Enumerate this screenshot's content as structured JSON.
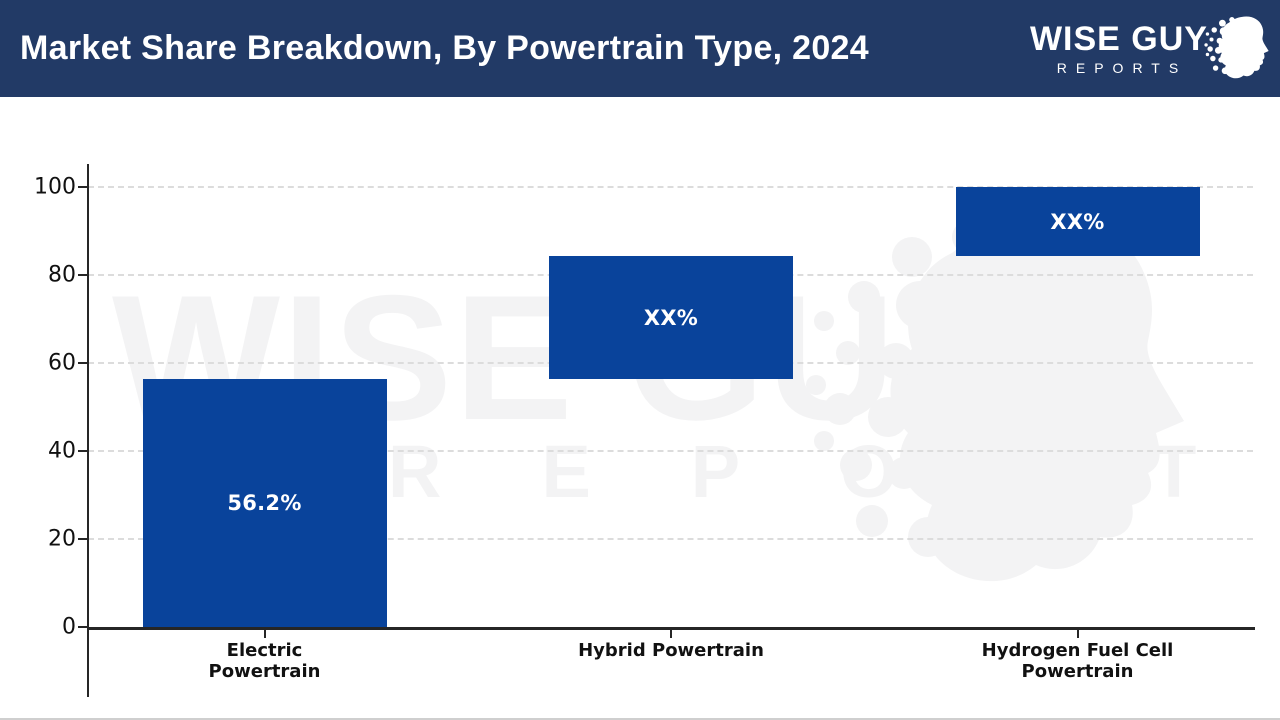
{
  "header": {
    "title": "Market Share Breakdown, By Powertrain Type, 2024",
    "logo": {
      "line1": "WISE GUY",
      "line2": "REPORTS"
    },
    "bg_color": "#223A66"
  },
  "watermark": {
    "line1": "WISE GUY",
    "line2": "REPORTS"
  },
  "chart_data": {
    "type": "bar",
    "subtype": "waterfall",
    "title": "Market Share Breakdown, By Powertrain Type, 2024",
    "categories": [
      "Electric Powertrain",
      "Hybrid Powertrain",
      "Hydrogen Fuel Cell Powertrain"
    ],
    "category_lines": [
      [
        "Electric",
        "Powertrain"
      ],
      [
        "Hybrid Powertrain"
      ],
      [
        "Hydrogen Fuel Cell",
        "Powertrain"
      ]
    ],
    "segments": [
      {
        "category": "Electric Powertrain",
        "start": 0,
        "end": 56.2,
        "label": "56.2%"
      },
      {
        "category": "Hybrid Powertrain",
        "start": 56.2,
        "end": 84.2,
        "label": "XX%"
      },
      {
        "category": "Hydrogen Fuel Cell Powertrain",
        "start": 84.2,
        "end": 99.8,
        "label": "XX%"
      }
    ],
    "xlabel": "",
    "ylabel": "",
    "ylim": [
      0,
      105
    ],
    "yticks": [
      0,
      20,
      40,
      60,
      80,
      100
    ],
    "grid": "horizontal-dashed",
    "legend_position": "none",
    "colors": {
      "bar": "#09439B",
      "bar_label": "#FFFFFF",
      "axis": "#262626",
      "gridline": "#DCDCDC",
      "header_bg": "#223A66",
      "watermark": "#F3F3F4",
      "bottom_border": "#CFCFCF"
    }
  }
}
